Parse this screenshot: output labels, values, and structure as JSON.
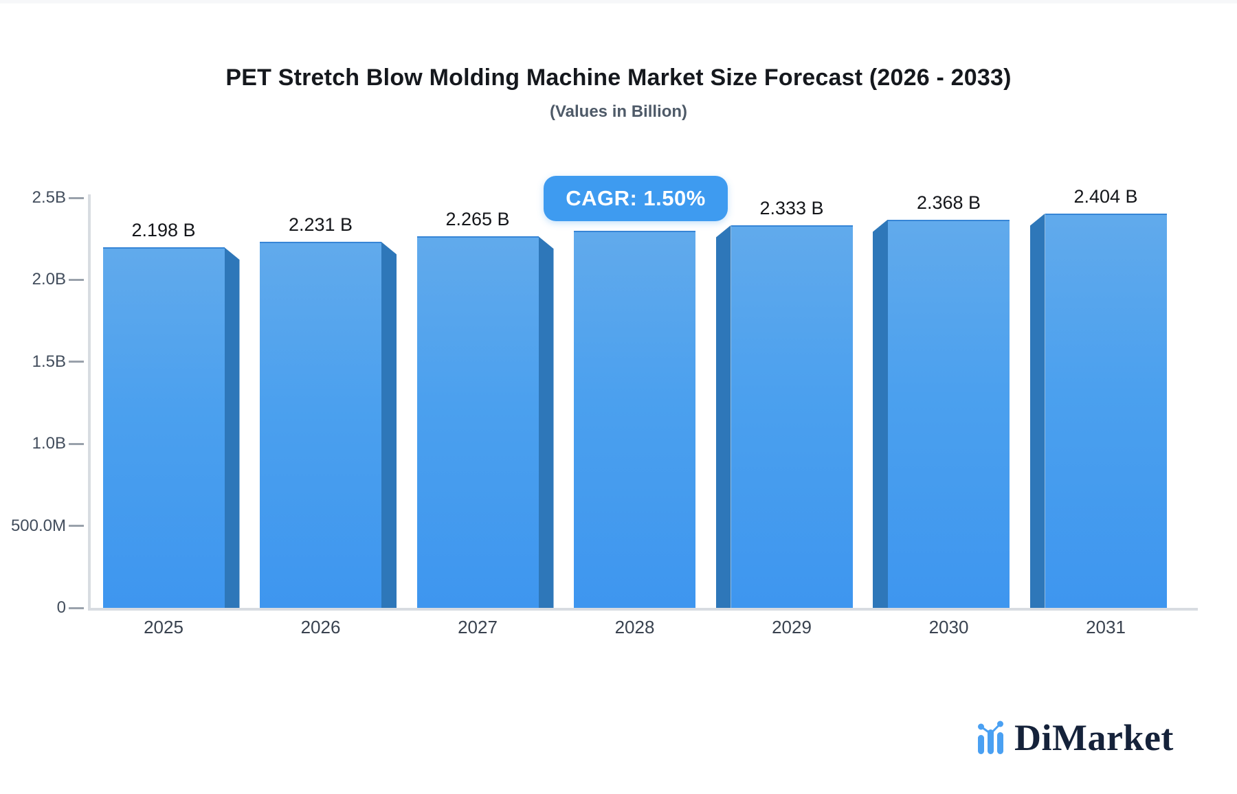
{
  "page": {
    "title": "PET Stretch Blow Molding Machine Market Size Forecast (2026 - 2033)",
    "subtitle": "(Values in Billion)"
  },
  "badge": {
    "label": "CAGR: 1.50%"
  },
  "logo": {
    "text": "DiMarket",
    "icon": "bar-chart-logo-icon"
  },
  "colors": {
    "bar_fill_top": "#61aaec",
    "bar_fill_mid": "#4ba0ee",
    "bar_fill_bottom": "#3e96ef",
    "bar_side": "#2e77b9",
    "badge_bg": "#3e9bf0",
    "logo_blue": "#4aa0f2",
    "logo_text": "#15223a",
    "axis_line": "#d8dce1",
    "tick": "#99a1ab"
  },
  "chart_data": {
    "type": "bar",
    "title": "PET Stretch Blow Molding Machine Market Size Forecast (2026 - 2033)",
    "subtitle": "(Values in Billion)",
    "categories": [
      "2025",
      "2026",
      "2027",
      "2028",
      "2029",
      "2030",
      "2031"
    ],
    "values": [
      2.198,
      2.231,
      2.265,
      2.299,
      2.333,
      2.368,
      2.404
    ],
    "bar_labels": [
      "2.198 B",
      "2.231 B",
      "2.265 B",
      "",
      "2.333 B",
      "2.368 B",
      "2.404 B"
    ],
    "note": "2028 bar label is hidden behind the CAGR badge",
    "y_ticks": [
      {
        "label": "2.5B",
        "value": 2.5
      },
      {
        "label": "2.0B",
        "value": 2.0
      },
      {
        "label": "1.5B",
        "value": 1.5
      },
      {
        "label": "1.0B",
        "value": 1.0
      },
      {
        "label": "500.0M",
        "value": 0.5
      },
      {
        "label": "0",
        "value": 0
      }
    ],
    "ylim": [
      0,
      2.5
    ],
    "unit": "B",
    "grid": false,
    "annotation": "CAGR: 1.50%",
    "legend": null
  }
}
